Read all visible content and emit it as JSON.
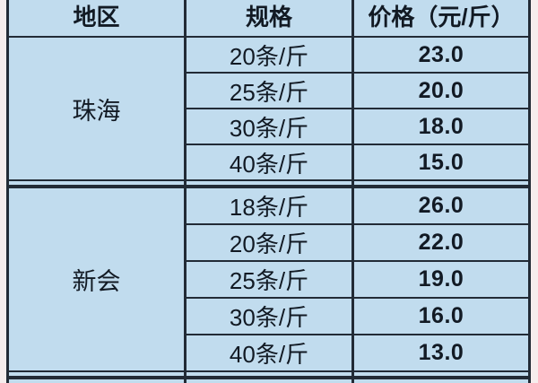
{
  "palette": {
    "cell_background": "#c1dcee",
    "border_color": "#222b36",
    "page_background": "#f6eded",
    "text_color": "#121a24"
  },
  "table": {
    "header": {
      "region": "地区",
      "spec": "规格",
      "price": "价格（元/斤）"
    },
    "groups": [
      {
        "region": "珠海",
        "rows": [
          {
            "spec": "20条/斤",
            "price": "23.0"
          },
          {
            "spec": "25条/斤",
            "price": "20.0"
          },
          {
            "spec": "30条/斤",
            "price": "18.0"
          },
          {
            "spec": "40条/斤",
            "price": "15.0"
          }
        ]
      },
      {
        "region": "新会",
        "rows": [
          {
            "spec": "18条/斤",
            "price": "26.0"
          },
          {
            "spec": "20条/斤",
            "price": "22.0"
          },
          {
            "spec": "25条/斤",
            "price": "19.0"
          },
          {
            "spec": "30条/斤",
            "price": "16.0"
          },
          {
            "spec": "40条/斤",
            "price": "13.0"
          }
        ]
      }
    ]
  },
  "chart_data": {
    "type": "table",
    "title": "",
    "columns": [
      "地区",
      "规格",
      "价格（元/斤）"
    ],
    "rows": [
      [
        "珠海",
        "20条/斤",
        23.0
      ],
      [
        "珠海",
        "25条/斤",
        20.0
      ],
      [
        "珠海",
        "30条/斤",
        18.0
      ],
      [
        "珠海",
        "40条/斤",
        15.0
      ],
      [
        "新会",
        "18条/斤",
        26.0
      ],
      [
        "新会",
        "20条/斤",
        22.0
      ],
      [
        "新会",
        "25条/斤",
        19.0
      ],
      [
        "新会",
        "30条/斤",
        16.0
      ],
      [
        "新会",
        "40条/斤",
        13.0
      ]
    ]
  }
}
